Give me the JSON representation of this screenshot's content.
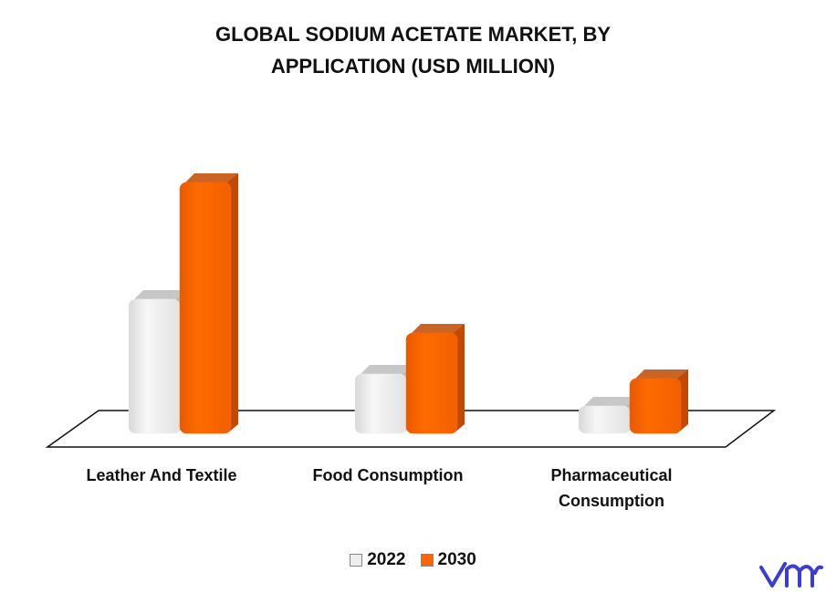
{
  "chart_data": {
    "type": "bar3d",
    "title": "GLOBAL SODIUM ACETATE MARKET, BY APPLICATION (USD MILLION)",
    "categories": [
      "Leather And Textile",
      "Food Consumption",
      "Pharmaceutical Consumption"
    ],
    "series": [
      {
        "name": "2022",
        "color": "#eeeeee",
        "values": [
          147,
          65,
          30
        ]
      },
      {
        "name": "2030",
        "color": "#ff6600",
        "values": [
          275,
          110,
          60
        ]
      }
    ]
  }
}
